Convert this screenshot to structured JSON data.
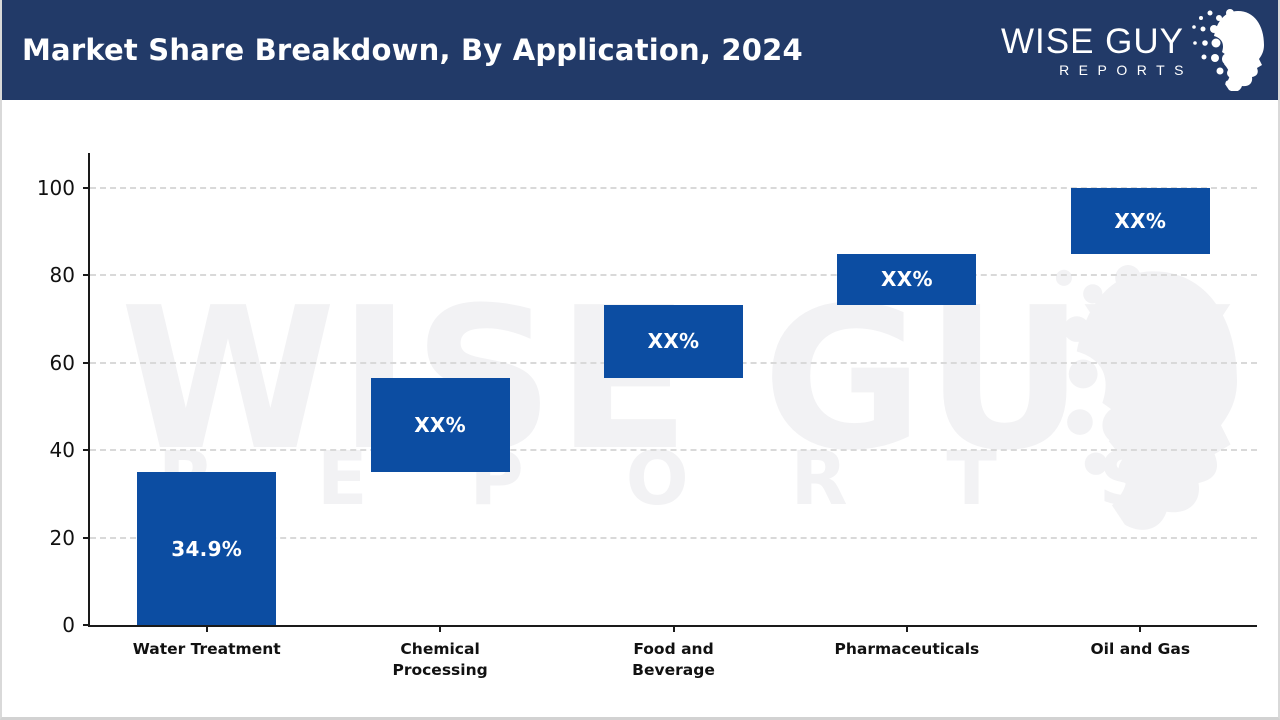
{
  "header": {
    "title": "Market Share Breakdown, By Application, 2024",
    "logo": {
      "line1": "WISE GUY",
      "line2": "REPORTS"
    }
  },
  "watermark": {
    "line1": "WISE GUY",
    "line2": "REPORTS"
  },
  "colors": {
    "header_bg": "#223a68",
    "bar_blue": "#0c4da2",
    "gridline": "#d9d9d9",
    "watermark": "#f2f2f4",
    "axis": "#1a1a1a"
  },
  "chart_data": {
    "type": "bar",
    "subtype": "waterfall",
    "title": "Market Share Breakdown, By Application, 2024",
    "xlabel": "",
    "ylabel": "",
    "ylim": [
      0,
      100
    ],
    "yticks": [
      0,
      20,
      40,
      60,
      80,
      100
    ],
    "grid": true,
    "legend": "none",
    "bar_color": "#0c4da2",
    "categories": [
      "Water Treatment",
      "Chemical Processing",
      "Food and Beverage",
      "Pharmaceuticals",
      "Oil and Gas"
    ],
    "bars": [
      {
        "category": "Water Treatment",
        "start": 0,
        "end": 34.9,
        "label": "34.9%"
      },
      {
        "category": "Chemical Processing",
        "start": 34.9,
        "end": 56.5,
        "label": "XX%"
      },
      {
        "category": "Food and Beverage",
        "start": 56.5,
        "end": 73.2,
        "label": "XX%"
      },
      {
        "category": "Pharmaceuticals",
        "start": 73.2,
        "end": 84.8,
        "label": "XX%"
      },
      {
        "category": "Oil and Gas",
        "start": 84.8,
        "end": 100,
        "label": "XX%"
      }
    ]
  }
}
